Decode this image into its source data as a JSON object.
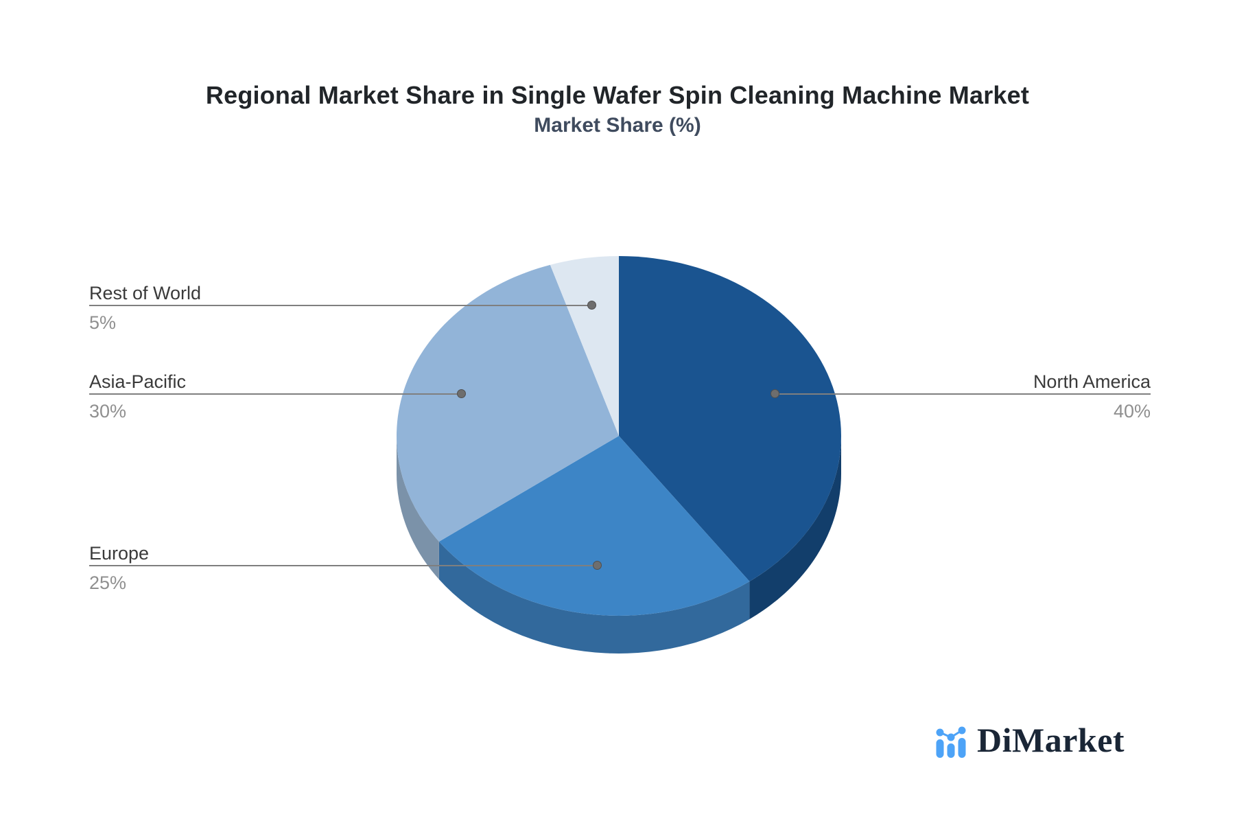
{
  "title": "Regional Market Share in Single Wafer Spin Cleaning Machine Market",
  "subtitle": "Market Share (%)",
  "brand": {
    "name": "DiMarket",
    "icon": "bar-line-chart-icon",
    "icon_color": "#4da3f7",
    "text_color": "#1a2636"
  },
  "colors": {
    "background": "#ffffff",
    "title_text": "#212529",
    "subtitle_text": "#3f4b5e",
    "callout_label_text": "#3a3a3a",
    "callout_pct_text": "#8f8f8f",
    "leader_line": "#7f7f7f",
    "leader_dot": "#6e6e6e"
  },
  "chart_data": {
    "type": "pie",
    "style": "3d",
    "title": "Regional Market Share in Single Wafer Spin Cleaning Machine Market",
    "subtitle": "Market Share (%)",
    "unit": "%",
    "direction": "clockwise",
    "start_angle_deg": 0,
    "legend_position": "none",
    "categories": [
      "North America",
      "Europe",
      "Asia-Pacific",
      "Rest of World"
    ],
    "values": [
      40,
      25,
      30,
      5
    ],
    "slices": [
      {
        "label": "North America",
        "value": 40,
        "display": "40%",
        "color": "#1a5490",
        "side_color": "#123e6b",
        "callout_side": "right"
      },
      {
        "label": "Europe",
        "value": 25,
        "display": "25%",
        "color": "#3d85c6",
        "side_color": "#32699c",
        "callout_side": "left"
      },
      {
        "label": "Asia-Pacific",
        "value": 30,
        "display": "30%",
        "color": "#92b4d8",
        "side_color": "#7b92a9",
        "callout_side": "left"
      },
      {
        "label": "Rest of World",
        "value": 5,
        "display": "5%",
        "color": "#dde7f1",
        "side_color": "#c3d1e2",
        "callout_side": "left"
      }
    ]
  }
}
